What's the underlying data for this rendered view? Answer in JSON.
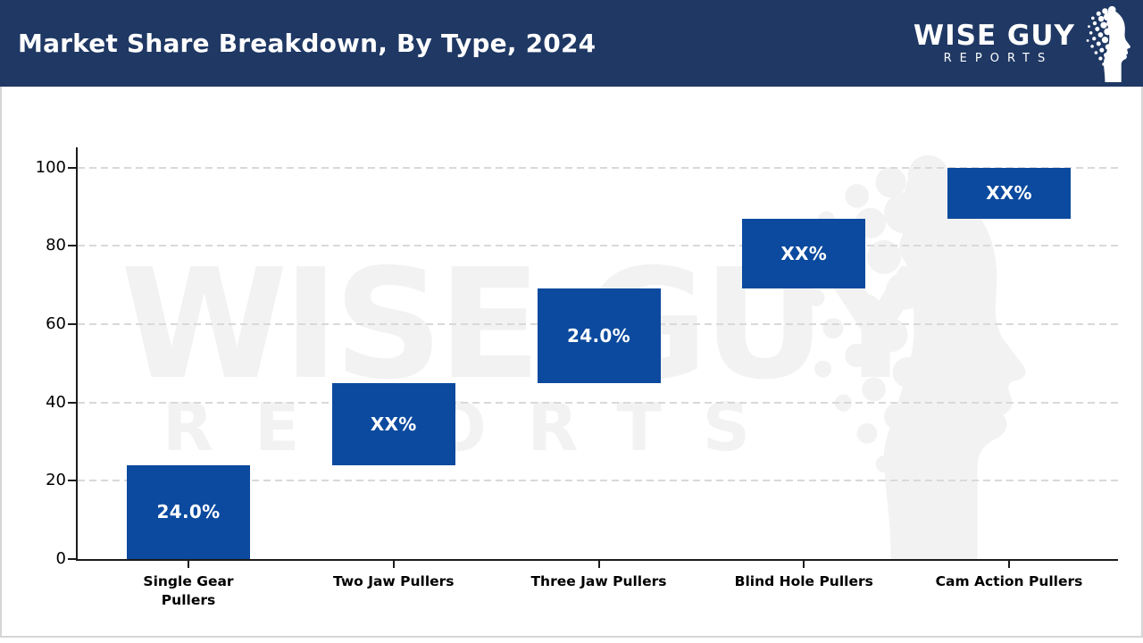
{
  "header": {
    "title": "Market Share Breakdown, By Type, 2024",
    "logo": {
      "line1": "WISE GUY",
      "line2": "REPORTS"
    }
  },
  "watermark": {
    "line1": "WISE GUY",
    "line2": "REPORTS"
  },
  "colors": {
    "header_bg": "#1f3864",
    "bar_blue": "#0b4a9e",
    "watermark_gray": "#f2f2f2",
    "axis": "#1c1c1c",
    "grid": "#d9d9d9",
    "frame": "#d6d6d6"
  },
  "chart_data": {
    "type": "bar",
    "subtype": "waterfall",
    "title": "Market Share Breakdown, By Type, 2024",
    "xlabel": "",
    "ylabel": "",
    "categories": [
      "Single Gear\nPullers",
      "Two Jaw Pullers",
      "Three Jaw Pullers",
      "Blind Hole Pullers",
      "Cam Action Pullers"
    ],
    "segments": [
      {
        "category": "Single Gear Pullers",
        "start": 0,
        "end": 24,
        "value": 24,
        "label": "24.0%"
      },
      {
        "category": "Two Jaw Pullers",
        "start": 24,
        "end": 45,
        "value": 21,
        "label": "XX%"
      },
      {
        "category": "Three Jaw Pullers",
        "start": 45,
        "end": 69,
        "value": 24,
        "label": "24.0%"
      },
      {
        "category": "Blind Hole Pullers",
        "start": 69,
        "end": 87,
        "value": 18,
        "label": "XX%"
      },
      {
        "category": "Cam Action Pullers",
        "start": 87,
        "end": 100,
        "value": 13,
        "label": "XX%"
      }
    ],
    "yticks": [
      0,
      20,
      40,
      60,
      80,
      100
    ],
    "ylim": [
      0,
      104
    ],
    "grid": "horizontal dashed, behind bars",
    "legend": "none",
    "bar_label_position": "center",
    "bar_color": "#0b4a9e",
    "bar_label_color": "#ffffff"
  }
}
